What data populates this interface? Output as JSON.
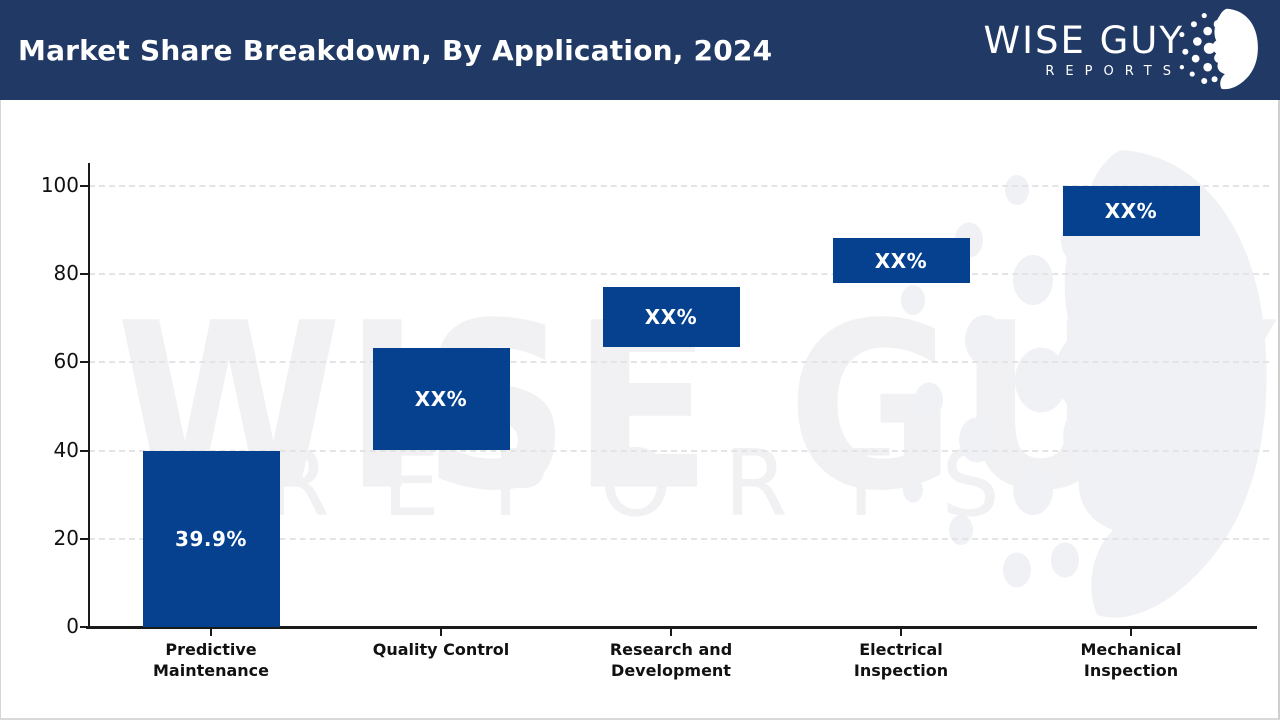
{
  "header": {
    "title": "Market Share Breakdown, By Application, 2024",
    "bg_color": "#213965",
    "logo": {
      "line1": "WISE GUY",
      "line2": "REPORTS"
    }
  },
  "watermark": {
    "line1": "WISE GUY",
    "line2": "REPORTS"
  },
  "chart_data": {
    "type": "bar",
    "subtype": "floating-waterfall",
    "title": "Market Share Breakdown, By Application, 2024",
    "categories": [
      "Predictive Maintenance",
      "Quality Control",
      "Research and Development",
      "Electrical Inspection",
      "Mechanical Inspection"
    ],
    "bars": [
      {
        "category": "Predictive Maintenance",
        "start": 0,
        "end": 39.9,
        "label": "39.9%"
      },
      {
        "category": "Quality Control",
        "start": 40.2,
        "end": 63.3,
        "label": "XX%"
      },
      {
        "category": "Research and Development",
        "start": 63.6,
        "end": 77.1,
        "label": "XX%"
      },
      {
        "category": "Electrical Inspection",
        "start": 77.9,
        "end": 88.3,
        "label": "XX%"
      },
      {
        "category": "Mechanical Inspection",
        "start": 88.6,
        "end": 99.9,
        "label": "XX%"
      }
    ],
    "yticks": [
      0,
      20,
      40,
      60,
      80,
      100
    ],
    "ylim": [
      0,
      105
    ],
    "xlabel": "",
    "ylabel": "",
    "bar_color": "#05418f",
    "bar_label_color": "#ffffff",
    "grid": {
      "axis": "y",
      "style": "dashed",
      "color": "#e4e4e6"
    },
    "legend": "none"
  }
}
